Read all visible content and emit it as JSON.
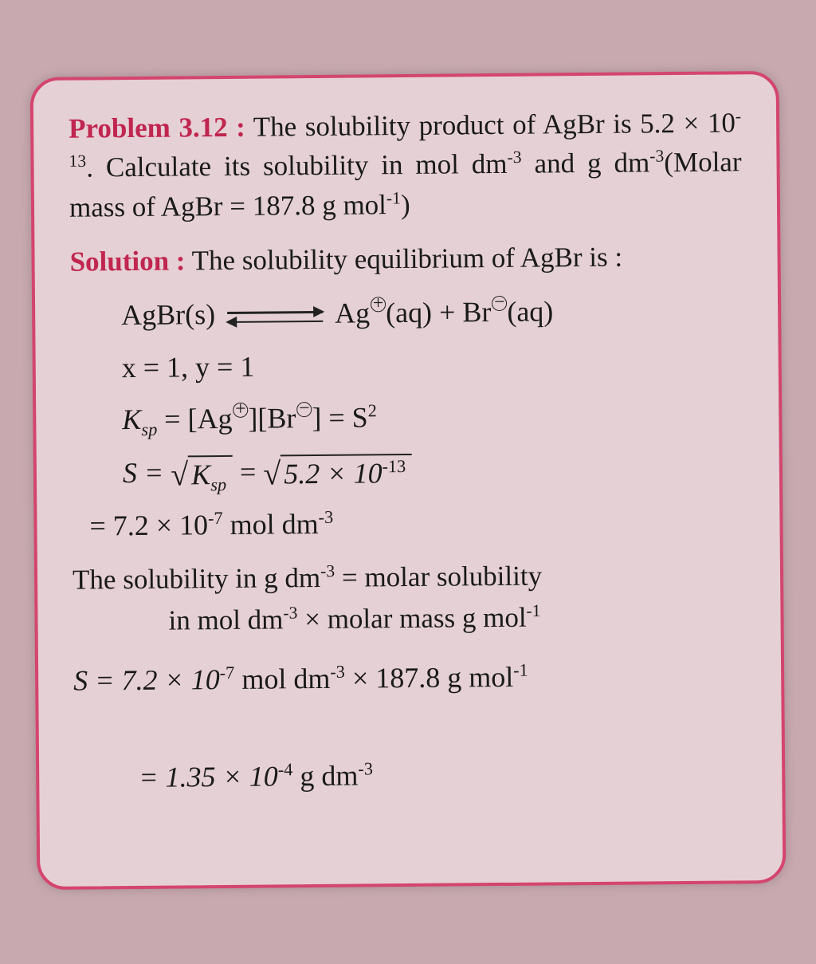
{
  "problem": {
    "label": "Problem 3.12 :",
    "text_1": " The solubility product of AgBr is 5.2 × 10",
    "exp_1": "-13",
    "text_2": ". Calculate its solubility in mol dm",
    "exp_2": "-3",
    "text_3": " and g dm",
    "exp_3": "-3",
    "text_4": "(Molar mass of AgBr = 187.8 g mol",
    "exp_4": "-1",
    "text_5": ")"
  },
  "solution": {
    "label": "Solution :",
    "intro": " The solubility equilibrium of AgBr is :"
  },
  "eq": {
    "lhs_species": "AgBr(s)",
    "rhs_cation": "Ag",
    "rhs_cation_phase": "(aq)",
    "plus": " + ",
    "rhs_anion": "Br",
    "rhs_anion_phase": "(aq)",
    "xy": "x = 1, y = 1",
    "ksp_lhs": "K",
    "ksp_sub": "sp",
    "ksp_eq": " = [Ag",
    "ksp_mid": "][Br",
    "ksp_end": "] = S",
    "ksp_pow": "2",
    "s_lhs": "S = ",
    "radicand1_K": "K",
    "radicand1_sub": "sp",
    "mid_eq": " = ",
    "radicand2_a": "5.2 × 10",
    "radicand2_exp": "-13",
    "s_val": " = 7.2 × 10",
    "s_val_exp": "-7",
    "s_val_unit": " mol dm",
    "s_val_unit_exp": "-3"
  },
  "conv": {
    "line1a": "The solubility in g dm",
    "line1a_exp": "-3",
    "line1b": " = molar solubility",
    "line2a": "in mol dm",
    "line2a_exp": "-3",
    "line2b": " × molar mass g mol",
    "line2b_exp": "-1"
  },
  "final": {
    "a": "S = 7.2 × 10",
    "a_exp": "-7",
    "b": " mol dm",
    "b_exp": "-3",
    "c": " × 187.8 g mol",
    "c_exp": "-1",
    "d": "   = 1.35 × 10",
    "d_exp": "-4",
    "e": " g dm",
    "e_exp": "-3"
  },
  "colors": {
    "page_bg": "#e5d0d5",
    "outer_bg": "#c8a9b0",
    "border": "#d4456e",
    "accent_text": "#c0264f",
    "body_text": "#1a1a1a"
  },
  "fontsizes": {
    "body": 35,
    "math": 36
  }
}
